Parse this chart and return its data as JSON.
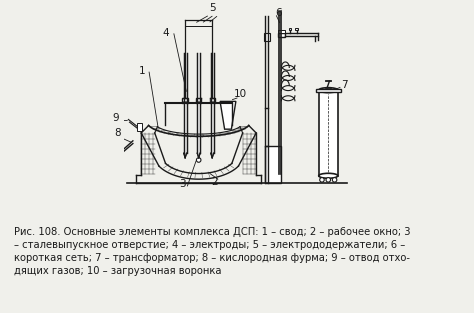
{
  "bg_color": "#f0f0eb",
  "line_color": "#1a1a1a",
  "caption": "Рис. 108. Основные элементы комплекса ДСП: 1 – свод; 2 – рабочее окно; 3\n– сталевыпускное отверстие; 4 – электроды; 5 – электрододержатели; 6 –\nкороткая сеть; 7 – трансформатор; 8 – кислородная фурма; 9 – отвод отхо-\nдящих газов; 10 – загрузочная воронка",
  "caption_fontsize": 7.2,
  "figsize": [
    4.74,
    3.13
  ],
  "dpi": 100
}
